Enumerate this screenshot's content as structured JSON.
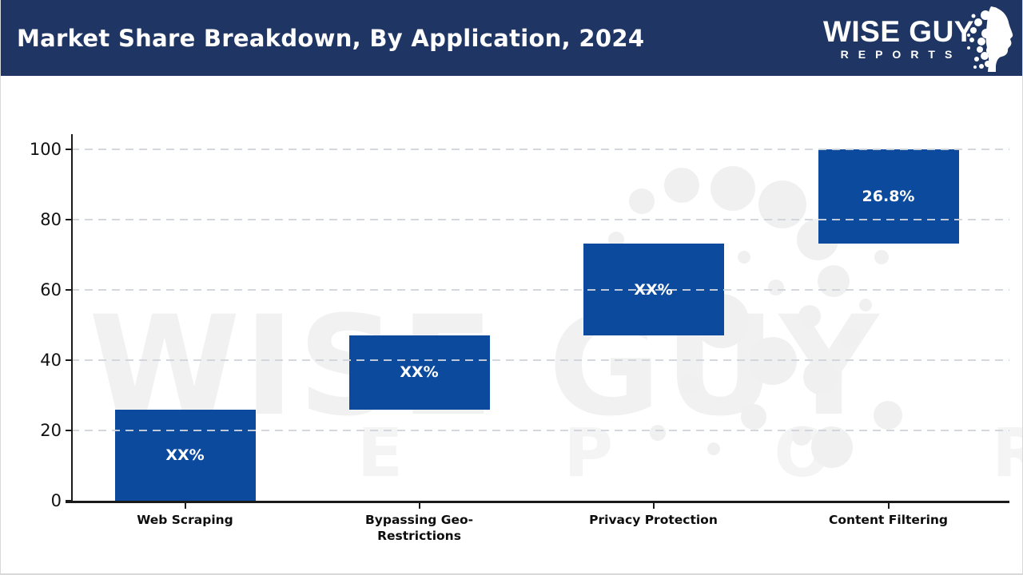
{
  "header": {
    "title": "Market Share Breakdown, By Application, 2024",
    "bg_color": "#1f3664",
    "logo": {
      "wordmark": "WISE GUY",
      "subtext": "REPORTS"
    }
  },
  "watermark": {
    "line1": "WISE GUY",
    "line2": "R E P O R T S"
  },
  "chart_data": {
    "type": "bar",
    "subtype": "waterfall",
    "title": "Market Share Breakdown, By Application, 2024",
    "categories": [
      "Web Scraping",
      "Bypassing Geo-Restrictions",
      "Privacy Protection",
      "Content Filtering"
    ],
    "category_display": [
      [
        "Web Scraping"
      ],
      [
        "Bypassing Geo-",
        "Restrictions"
      ],
      [
        "Privacy Protection"
      ],
      [
        "Content Filtering"
      ]
    ],
    "segments": [
      {
        "category": "Web Scraping",
        "start": 0,
        "end": 26,
        "label": "XX%"
      },
      {
        "category": "Bypassing Geo-Restrictions",
        "start": 26,
        "end": 47,
        "label": "XX%"
      },
      {
        "category": "Privacy Protection",
        "start": 47,
        "end": 73.2,
        "label": "XX%"
      },
      {
        "category": "Content Filtering",
        "start": 73.2,
        "end": 100,
        "label": "26.8%"
      }
    ],
    "yticks": [
      0,
      20,
      40,
      60,
      80,
      100
    ],
    "ylim": [
      0,
      100
    ],
    "xlabel": "",
    "ylabel": "",
    "grid": "horizontal dashed, drawn over bars",
    "legend": "none",
    "bar_color": "#0c4a9e",
    "bar_label_color": "#ffffff",
    "axis_color": "#1a1a1a"
  }
}
